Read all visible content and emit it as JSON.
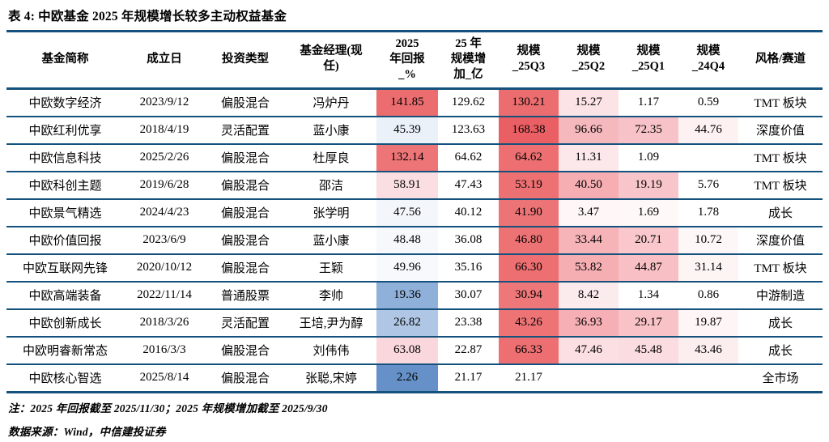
{
  "title": "表 4: 中欧基金 2025 年规模增长较多主动权益基金",
  "colors": {
    "border_navy": "#14527D",
    "heat_red_strong": "#EC6D6F",
    "heat_blue_strong": "#6591C8"
  },
  "table": {
    "headers": [
      {
        "label": "基金简称"
      },
      {
        "label": "成立日"
      },
      {
        "label": "投资类型"
      },
      {
        "label": "基金经理(现\n任)"
      },
      {
        "label": "2025\n年回报\n_%"
      },
      {
        "label": "25 年\n规模增\n加_亿"
      },
      {
        "label": "规模\n_25Q3"
      },
      {
        "label": "规模\n_25Q2"
      },
      {
        "label": "规模\n_25Q1"
      },
      {
        "label": "规模\n_24Q4"
      },
      {
        "label": "风格/赛道"
      }
    ],
    "rows": [
      {
        "cells": [
          "中欧数字经济",
          "2023/9/12",
          "偏股混合",
          "冯炉丹",
          "141.85",
          "129.62",
          "130.21",
          "15.27",
          "1.17",
          "0.59",
          "TMT 板块"
        ],
        "bgs": [
          null,
          null,
          null,
          null,
          "#EC6D6F",
          null,
          "#EC6D6F",
          "#FBE3E6",
          null,
          null,
          null
        ]
      },
      {
        "cells": [
          "中欧红利优享",
          "2018/4/19",
          "灵活配置",
          "蓝小康",
          "45.39",
          "123.63",
          "168.38",
          "96.66",
          "72.35",
          "44.76",
          "深度价值"
        ],
        "bgs": [
          null,
          null,
          null,
          null,
          "#EBF1F9",
          null,
          "#EA5F63",
          "#F5B8BC",
          "#F8C3C8",
          "#FDF1F2",
          null
        ]
      },
      {
        "cells": [
          "中欧信息科技",
          "2025/2/26",
          "偏股混合",
          "杜厚良",
          "132.14",
          "64.62",
          "64.62",
          "11.31",
          "1.09",
          "",
          "TMT 板块"
        ],
        "bgs": [
          null,
          null,
          null,
          null,
          "#ED7477",
          null,
          "#ED6F71",
          "#FCE8EA",
          null,
          null,
          null
        ]
      },
      {
        "cells": [
          "中欧科创主题",
          "2019/6/28",
          "偏股混合",
          "邵洁",
          "58.91",
          "47.43",
          "53.19",
          "40.50",
          "19.19",
          "5.76",
          "TMT 板块"
        ],
        "bgs": [
          null,
          null,
          null,
          null,
          "#FADEE2",
          null,
          "#ED7173",
          "#F6AEB3",
          "#F8C5CA",
          null,
          null
        ]
      },
      {
        "cells": [
          "中欧景气精选",
          "2024/4/23",
          "偏股混合",
          "张学明",
          "47.56",
          "40.12",
          "41.90",
          "3.47",
          "1.69",
          "1.78",
          "成长"
        ],
        "bgs": [
          null,
          null,
          null,
          null,
          "#F3F6FB",
          null,
          "#ED7476",
          "#FEF6F7",
          "#FEF8F8",
          null,
          null
        ]
      },
      {
        "cells": [
          "中欧价值回报",
          "2023/6/9",
          "偏股混合",
          "蓝小康",
          "48.48",
          "36.08",
          "46.80",
          "33.44",
          "20.71",
          "10.72",
          "深度价值"
        ],
        "bgs": [
          null,
          null,
          null,
          null,
          "#F6F8FC",
          null,
          "#ED7274",
          "#F6B3B8",
          "#F9C7CC",
          "#FEF7F7",
          null
        ]
      },
      {
        "cells": [
          "中欧互联网先锋",
          "2020/10/12",
          "偏股混合",
          "王颖",
          "49.96",
          "35.16",
          "66.30",
          "53.82",
          "44.87",
          "31.14",
          "TMT 板块"
        ],
        "bgs": [
          null,
          null,
          null,
          null,
          "#F8F9FD",
          null,
          "#ED6F71",
          "#F5AEB2",
          "#F8C0C5",
          "#FDF4F4",
          null
        ]
      },
      {
        "cells": [
          "中欧高端装备",
          "2022/11/14",
          "普通股票",
          "李帅",
          "19.36",
          "30.07",
          "30.94",
          "8.42",
          "1.34",
          "0.86",
          "中游制造"
        ],
        "bgs": [
          null,
          null,
          null,
          null,
          "#8FB0D9",
          null,
          "#EE7779",
          "#FCEBED",
          null,
          null,
          null
        ]
      },
      {
        "cells": [
          "中欧创新成长",
          "2018/3/26",
          "灵活配置",
          "王培,尹为醇",
          "26.82",
          "23.38",
          "43.26",
          "36.93",
          "29.17",
          "19.87",
          "成长"
        ],
        "bgs": [
          null,
          null,
          null,
          null,
          "#AFC6E4",
          null,
          "#ED7375",
          "#F6AFB4",
          "#F8C2C7",
          "#FEF6F6",
          null
        ]
      },
      {
        "cells": [
          "中欧明睿新常态",
          "2016/3/3",
          "偏股混合",
          "刘伟伟",
          "63.08",
          "22.87",
          "66.33",
          "47.46",
          "45.48",
          "43.46",
          "成长"
        ],
        "bgs": [
          null,
          null,
          null,
          null,
          "#F9D7DC",
          null,
          "#ED6F71",
          "#FBDFE2",
          "#FBDCE0",
          "#FCEDEF",
          null
        ]
      },
      {
        "cells": [
          "中欧核心智选",
          "2025/8/14",
          "偏股混合",
          "张聪,宋婷",
          "2.26",
          "21.17",
          "21.17",
          "",
          "",
          "",
          "全市场"
        ],
        "bgs": [
          null,
          null,
          null,
          null,
          "#6591C8",
          null,
          null,
          null,
          null,
          null,
          null
        ]
      }
    ]
  },
  "notes": [
    {
      "text": "注：2025 年回报截至 2025/11/30；2025 年规模增加截至 2025/9/30"
    },
    {
      "text": "数据来源：Wind，中信建投证券"
    }
  ]
}
